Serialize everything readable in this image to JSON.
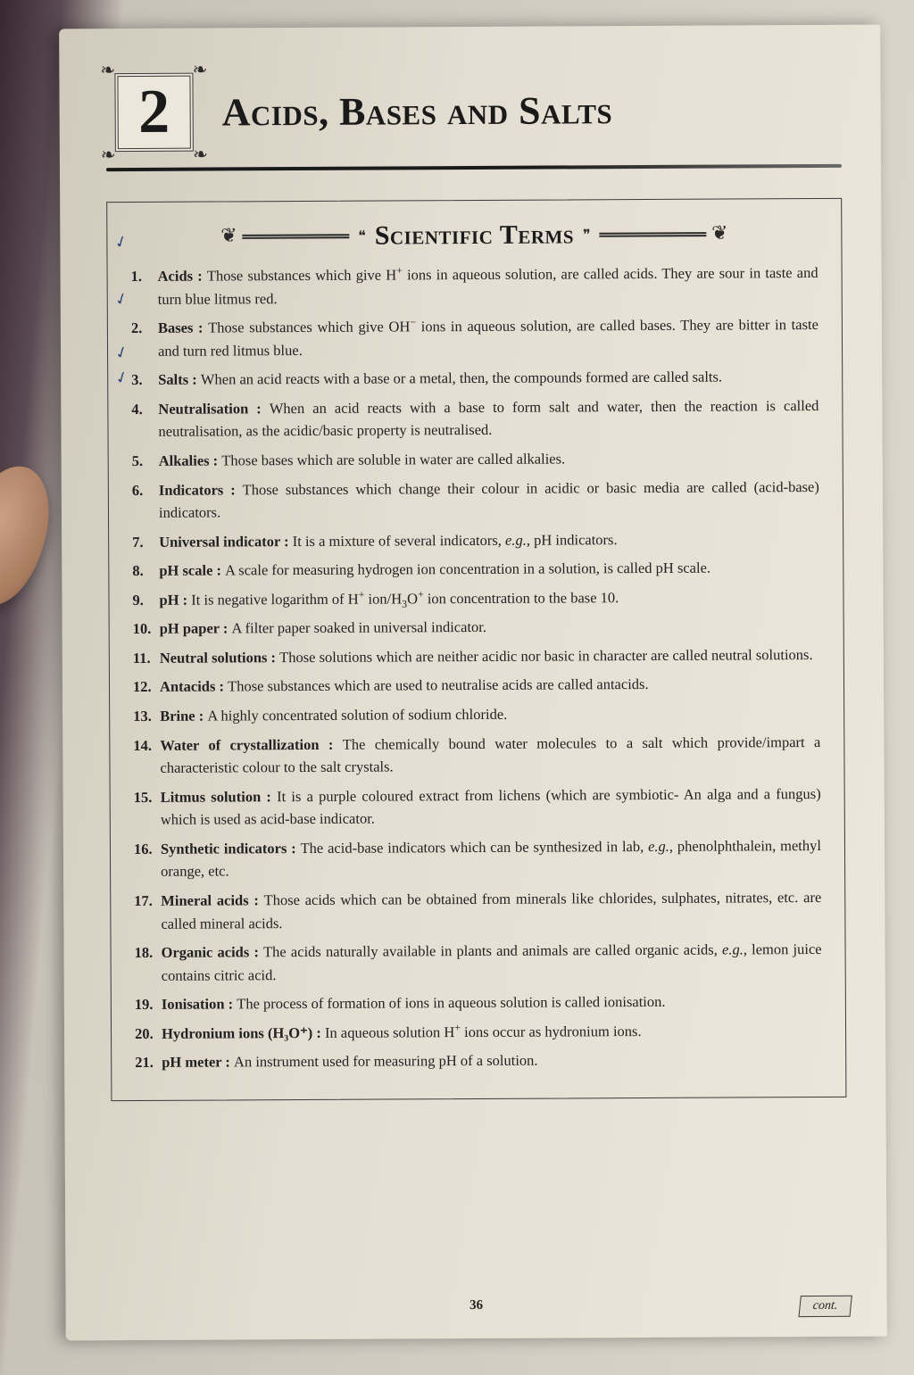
{
  "chapter": {
    "number": "2",
    "title": "Acids, Bases and Salts"
  },
  "section_title": "Scientific Terms",
  "page_number": "36",
  "cont_label": "cont.",
  "terms": [
    {
      "name": "Acids",
      "def_html": "Those substances which give H<span class='sup'>+</span> ions in aqueous solution, are called acids. They are sour in taste and turn blue litmus red."
    },
    {
      "name": "Bases",
      "def_html": "Those substances which give OH<span class='sup'>−</span> ions in aqueous solution, are called bases. They are bitter in taste and turn red litmus blue."
    },
    {
      "name": "Salts",
      "def_html": "When an acid reacts with a base or a metal, then, the compounds formed are called salts."
    },
    {
      "name": "Neutralisation",
      "def_html": "When an acid reacts with a base to form salt and water, then the reaction is called neutralisation, as the acidic/basic property is neutralised."
    },
    {
      "name": "Alkalies",
      "def_html": "Those bases which are soluble in water are called alkalies."
    },
    {
      "name": "Indicators",
      "def_html": "Those substances which change their colour in acidic or basic media are called (acid-base) indicators."
    },
    {
      "name": "Universal indicator",
      "def_html": "It is a mixture of several indicators, <i>e.g.</i>, pH indicators."
    },
    {
      "name": "pH scale",
      "def_html": "A scale for measuring hydrogen ion concentration in a solution, is called pH scale."
    },
    {
      "name": "pH",
      "def_html": "It is negative logarithm of H<span class='sup'>+</span> ion/H<span class='sub'>3</span>O<span class='sup'>+</span> ion concentration to the base 10."
    },
    {
      "name": "pH paper",
      "def_html": "A filter paper soaked in universal indicator."
    },
    {
      "name": "Neutral solutions",
      "def_html": "Those solutions which are neither acidic nor basic in character are called neutral solutions."
    },
    {
      "name": "Antacids",
      "def_html": "Those substances which are used to neutralise acids are called antacids."
    },
    {
      "name": "Brine",
      "def_html": "A highly concentrated solution of sodium chloride."
    },
    {
      "name": "Water of crystallization",
      "def_html": "The chemically bound water molecules to a salt which provide/impart a characteristic colour to the salt crystals."
    },
    {
      "name": "Litmus solution",
      "def_html": "It is a purple coloured extract from lichens (which are symbiotic- An alga and a fungus) which is used as acid-base indicator."
    },
    {
      "name": "Synthetic indicators",
      "def_html": "The acid-base indicators which can be synthesized in lab, <i>e.g.</i>, phenolphthalein, methyl orange, etc."
    },
    {
      "name": "Mineral acids",
      "def_html": "Those acids which can be obtained from minerals like chlorides, sulphates, nitrates, etc. are called mineral acids."
    },
    {
      "name": "Organic acids",
      "def_html": "The acids naturally available in plants and animals are called organic acids, <i>e.g.</i>, lemon juice contains citric acid."
    },
    {
      "name": "Ionisation",
      "def_html": "The process of formation of ions in aqueous solution is called ionisation."
    },
    {
      "name": "Hydronium ions (H₃O⁺)",
      "def_html": "In aqueous solution H<span class='sup'>+</span> ions occur as hydronium ions."
    },
    {
      "name": "pH meter",
      "def_html": "An instrument used for measuring pH of a solution."
    }
  ],
  "colors": {
    "text": "#2a2a2a",
    "paper_light": "#ece7db",
    "paper_dark": "#d0cabc",
    "rule": "#1a1a1a",
    "ink_blue": "#2c4a7a"
  }
}
